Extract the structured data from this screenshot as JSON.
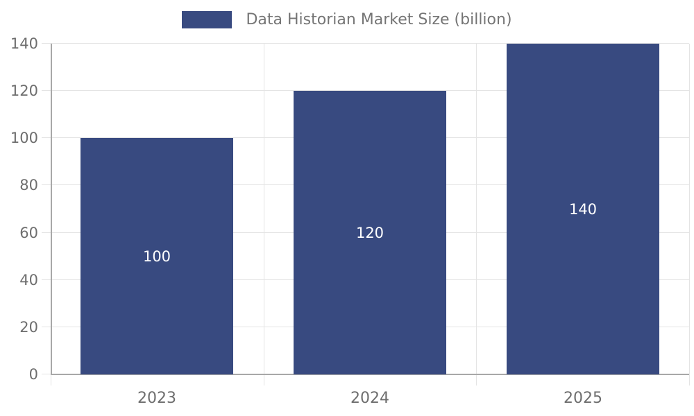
{
  "legend": {
    "label": "Data Historian Market Size (billion)"
  },
  "chart_data": {
    "type": "bar",
    "title": "Data Historian Market Size (billion)",
    "categories": [
      "2023",
      "2024",
      "2025"
    ],
    "values": [
      100,
      120,
      140
    ],
    "data_labels": [
      "100",
      "120",
      "140"
    ],
    "xlabel": "",
    "ylabel": "",
    "ylim": [
      0,
      140
    ],
    "ytick_interval": 20,
    "ytick_labels": [
      "0",
      "20",
      "40",
      "60",
      "80",
      "100",
      "120",
      "140"
    ],
    "grid": true,
    "legend_position": "top-center",
    "colors": {
      "bar": "#384A80",
      "data_label_text": "#ffffff",
      "legend_text": "#757575",
      "tick_label_text": "#6e6e6e",
      "gridline": "#e4e4e4",
      "axis_line": "#a8a8a8",
      "background": "#ffffff"
    }
  }
}
